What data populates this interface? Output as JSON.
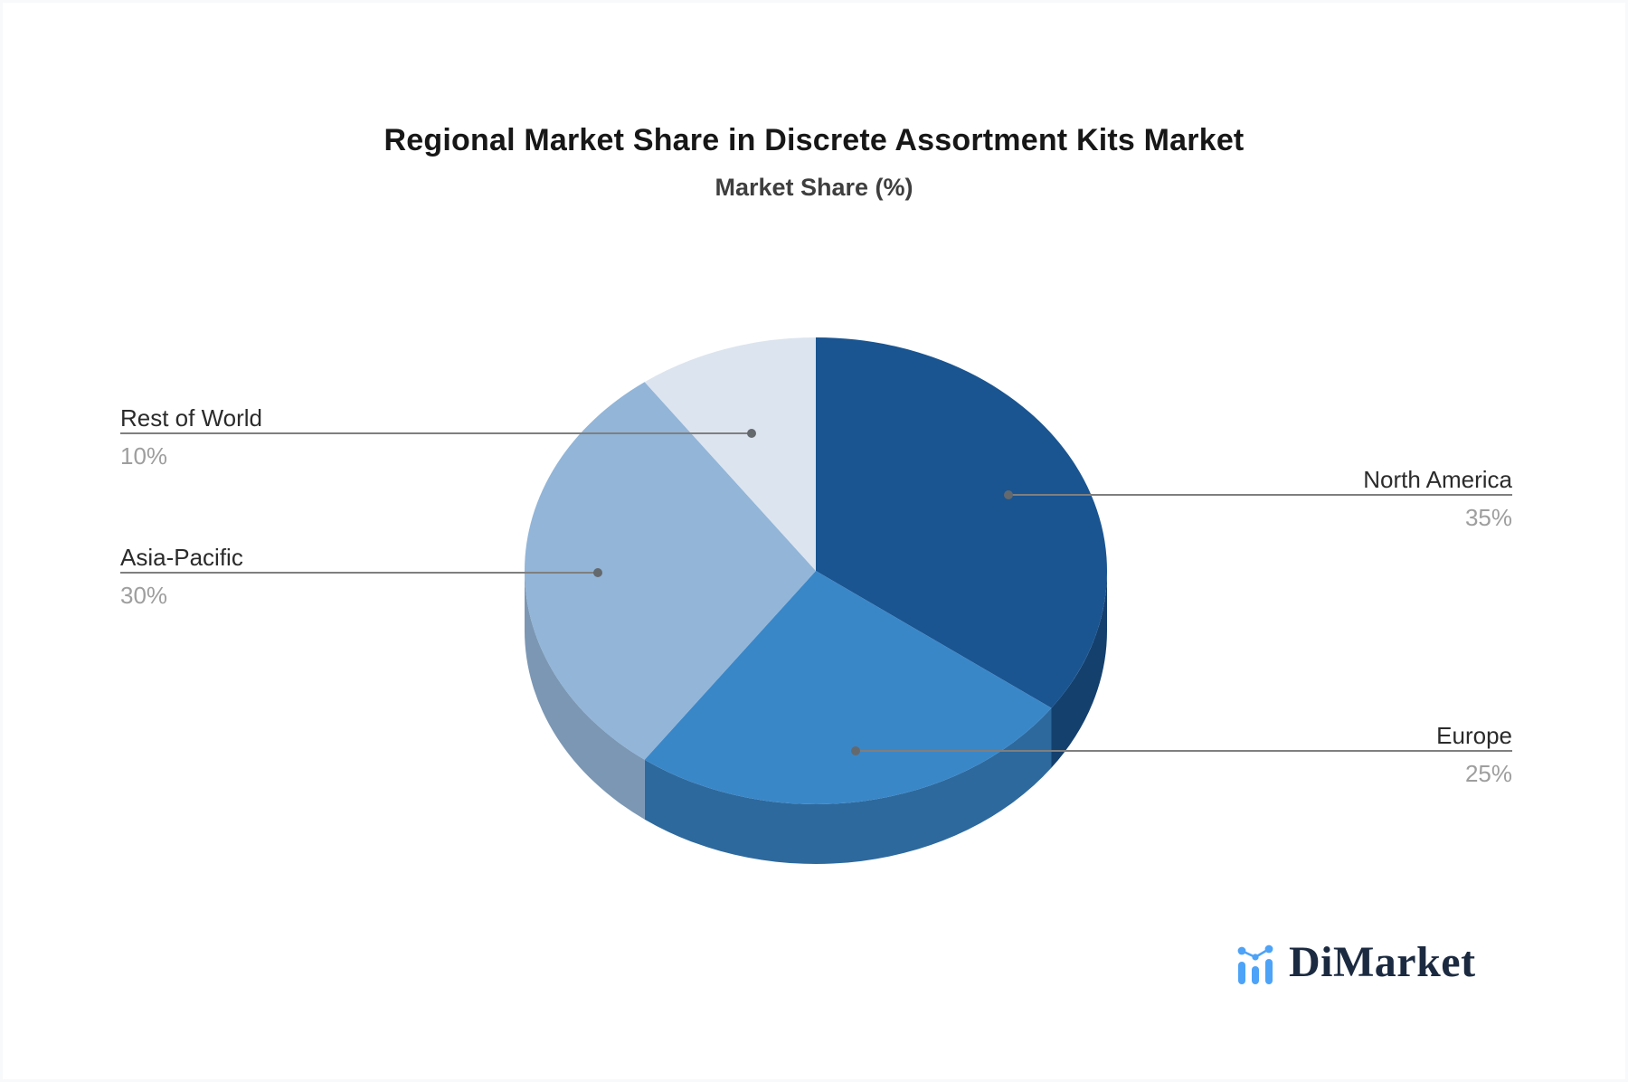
{
  "header": {
    "title": "Regional Market Share in Discrete Assortment Kits Market",
    "subtitle": "Market Share (%)"
  },
  "chart_data": {
    "type": "pie",
    "title": "Regional Market Share in Discrete Assortment Kits Market",
    "subtitle": "Market Share (%)",
    "unit": "percent",
    "effect": "3d-depth",
    "start_angle_deg": 0,
    "direction": "clockwise",
    "labels_position": "outside-with-leader-lines",
    "legend": "none",
    "slices": [
      {
        "label": "North America",
        "value": 35,
        "display_value": "35%",
        "color": "#1A5591",
        "depth_color": "#14406E",
        "label_side": "right"
      },
      {
        "label": "Europe",
        "value": 25,
        "display_value": "25%",
        "color": "#3A87C8",
        "depth_color": "#2D699D",
        "label_side": "right"
      },
      {
        "label": "Asia-Pacific",
        "value": 30,
        "display_value": "30%",
        "color": "#92B5D8",
        "depth_color": "#7B97B4",
        "label_side": "left"
      },
      {
        "label": "Rest of World",
        "value": 10,
        "display_value": "10%",
        "color": "#DCE4EF",
        "depth_color": "#C3CEDE",
        "label_side": "left"
      }
    ],
    "leader_line_color": "#7F7F7F",
    "leader_dot_color": "#64696E",
    "label_text_color": "#2B2B2B",
    "value_text_color": "#9E9E9E"
  },
  "logo": {
    "text": "DiMarket",
    "text_color": "#1B2A40",
    "icon": "bar-line-chart-icon",
    "icon_color": "#4DA3F7"
  }
}
